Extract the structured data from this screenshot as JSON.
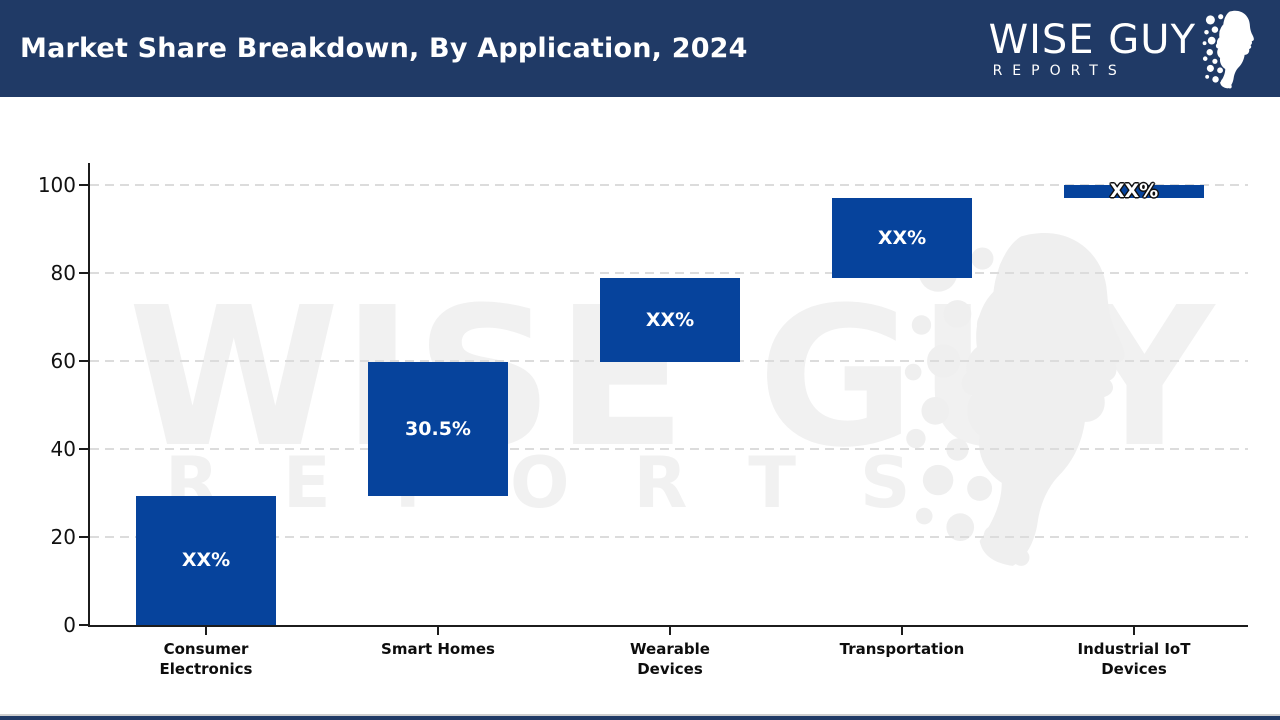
{
  "header": {
    "title": "Market Share Breakdown, By Application, 2024",
    "logo": {
      "name": "WISE GUY",
      "tagline": "REPORTS"
    }
  },
  "watermark": {
    "line1": "WISE GUY",
    "line2": "REPORTS"
  },
  "chart_data": {
    "type": "bar",
    "subtype": "waterfall-segments",
    "title": "Market Share Breakdown, By Application, 2024",
    "xlabel": "",
    "ylabel": "",
    "ylim": [
      0,
      100
    ],
    "yticks": [
      0,
      20,
      40,
      60,
      80,
      100
    ],
    "grid": "horizontal-dashed",
    "legend": "none",
    "categories": [
      "Consumer Electronics",
      "Smart Homes",
      "Wearable Devices",
      "Transportation",
      "Industrial IoT Devices"
    ],
    "bars": [
      {
        "category": "Consumer Electronics",
        "start": 0,
        "end": 29.3,
        "value_label": "XX%"
      },
      {
        "category": "Smart Homes",
        "start": 29.3,
        "end": 59.8,
        "value_label": "30.5%"
      },
      {
        "category": "Wearable Devices",
        "start": 59.8,
        "end": 78.8,
        "value_label": "XX%"
      },
      {
        "category": "Transportation",
        "start": 78.8,
        "end": 97.0,
        "value_label": "XX%"
      },
      {
        "category": "Industrial IoT Devices",
        "start": 97.0,
        "end": 100.0,
        "value_label": "XX%"
      }
    ],
    "bar_color": "#06439C"
  },
  "colors": {
    "header_bg": "#203A66",
    "bar_blue": "#06439C",
    "axis": "#1C1C1C",
    "gridline": "#DCDCDC",
    "watermark_gray": "#F1F1F1",
    "footer_line": "#CFCFCF"
  }
}
